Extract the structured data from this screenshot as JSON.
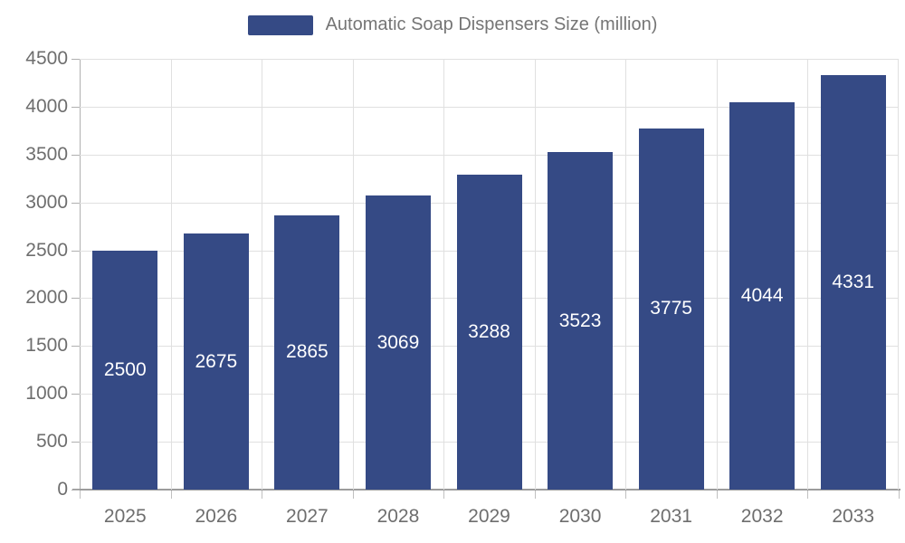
{
  "legend": {
    "label": "Automatic Soap Dispensers Size (million)"
  },
  "colors": {
    "bar": "#354a85",
    "bar_label": "#ffffff",
    "legend_text": "#757575",
    "axis_text": "#6e6e6e",
    "gridline": "#e0e0e0"
  },
  "chart_data": {
    "type": "bar",
    "title": "Automatic Soap Dispensers Size (million)",
    "series_name": "Automatic Soap Dispensers Size (million)",
    "categories": [
      "2025",
      "2026",
      "2027",
      "2028",
      "2029",
      "2030",
      "2031",
      "2032",
      "2033"
    ],
    "values": [
      2500,
      2675,
      2865,
      3069,
      3288,
      3523,
      3775,
      4044,
      4331
    ],
    "xlabel": "",
    "ylabel": "",
    "ylim": [
      0,
      4500
    ],
    "ytick_step": 500,
    "yticks": [
      0,
      500,
      1000,
      1500,
      2000,
      2500,
      3000,
      3500,
      4000,
      4500
    ],
    "grid": true,
    "legend_position": "top",
    "bar_labels_inside": true
  }
}
